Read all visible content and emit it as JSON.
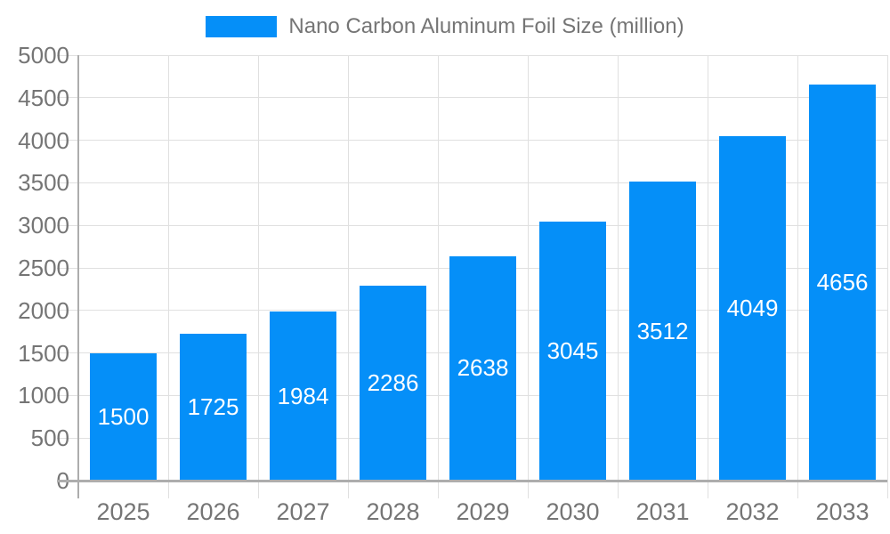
{
  "legend": {
    "label": "Nano Carbon Aluminum Foil Size (million)"
  },
  "chart_data": {
    "type": "bar",
    "title": "Nano Carbon Aluminum Foil Size (million)",
    "categories": [
      "2025",
      "2026",
      "2027",
      "2028",
      "2029",
      "2030",
      "2031",
      "2032",
      "2033"
    ],
    "values": [
      1500,
      1725,
      1984,
      2286,
      2638,
      3045,
      3512,
      4049,
      4656
    ],
    "xlabel": "",
    "ylabel": "",
    "ylim": [
      0,
      5000
    ],
    "y_tick_step": 500,
    "y_ticks": [
      0,
      500,
      1000,
      1500,
      2000,
      2500,
      3000,
      3500,
      4000,
      4500,
      5000
    ],
    "grid": true,
    "legend_position": "top-center",
    "value_label_position": "inside-middle",
    "colors": {
      "bar": "#058FF8",
      "grid": "#e0e0e0",
      "axis": "#adadad",
      "tick_label": "#757575",
      "value_label": "#ffffff",
      "legend_label": "#757575",
      "background": "#ffffff"
    }
  }
}
